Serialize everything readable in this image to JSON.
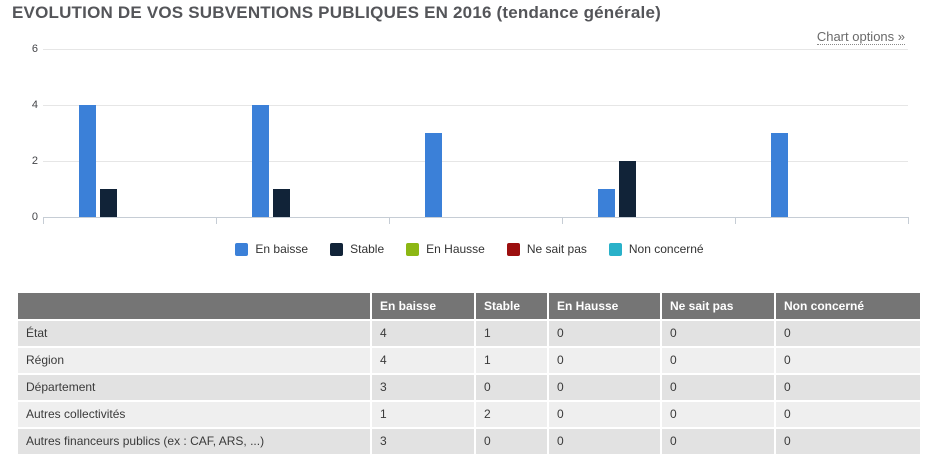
{
  "header": {
    "title": "EVOLUTION DE VOS SUBVENTIONS PUBLIQUES EN 2016 (tendance générale)",
    "chart_options_label": "Chart options »"
  },
  "chart_data": {
    "type": "bar",
    "title": "",
    "xlabel": "",
    "ylabel": "",
    "categories": [
      "État",
      "Région",
      "Département",
      "Autres collectivités",
      "Autres financeurs publics (ex : CAF, ARS, ...)"
    ],
    "series": [
      {
        "name": "En baisse",
        "color": "#3b80d8",
        "values": [
          4,
          4,
          3,
          1,
          3
        ]
      },
      {
        "name": "Stable",
        "color": "#112338",
        "values": [
          1,
          1,
          0,
          2,
          0
        ]
      },
      {
        "name": "En Hausse",
        "color": "#8cb714",
        "values": [
          0,
          0,
          0,
          0,
          0
        ]
      },
      {
        "name": "Ne sait pas",
        "color": "#9c0f0f",
        "values": [
          0,
          0,
          0,
          0,
          0
        ]
      },
      {
        "name": "Non concerné",
        "color": "#29b1c9",
        "values": [
          0,
          0,
          0,
          0,
          0
        ]
      }
    ],
    "ylim": [
      0,
      6
    ],
    "yticks": [
      0,
      2,
      4,
      6
    ],
    "grid": true,
    "legend_position": "bottom"
  },
  "table": {
    "columns": [
      "",
      "En baisse",
      "Stable",
      "En Hausse",
      "Ne sait pas",
      "Non concerné"
    ],
    "rows": [
      {
        "label": "État",
        "values": [
          "4",
          "1",
          "0",
          "0",
          "0"
        ]
      },
      {
        "label": "Région",
        "values": [
          "4",
          "1",
          "0",
          "0",
          "0"
        ]
      },
      {
        "label": "Département",
        "values": [
          "3",
          "0",
          "0",
          "0",
          "0"
        ]
      },
      {
        "label": "Autres collectivités",
        "values": [
          "1",
          "2",
          "0",
          "0",
          "0"
        ]
      },
      {
        "label": "Autres financeurs publics (ex : CAF, ARS, ...)",
        "values": [
          "3",
          "0",
          "0",
          "0",
          "0"
        ]
      }
    ]
  }
}
